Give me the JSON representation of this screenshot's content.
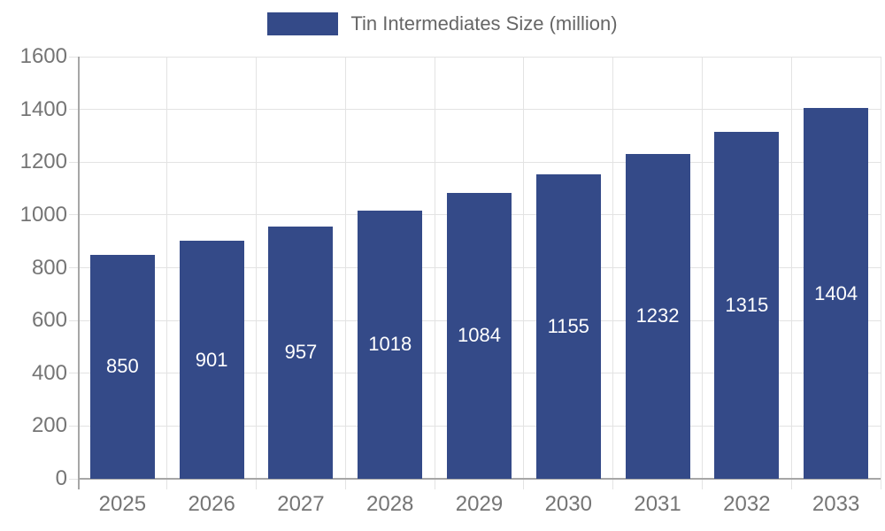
{
  "chart_data": {
    "type": "bar",
    "title": "",
    "legend": "Tin Intermediates Size (million)",
    "categories": [
      "2025",
      "2026",
      "2027",
      "2028",
      "2029",
      "2030",
      "2031",
      "2032",
      "2033"
    ],
    "values": [
      850,
      901,
      957,
      1018,
      1084,
      1155,
      1232,
      1315,
      1404
    ],
    "xlabel": "",
    "ylabel": "",
    "ylim": [
      0,
      1600
    ],
    "yticks": [
      0,
      200,
      400,
      600,
      800,
      1000,
      1200,
      1400,
      1600
    ],
    "grid": true,
    "legend_position": "top",
    "bar_labels_inside": true
  },
  "colors": {
    "bar": "#344a88",
    "grid": "#e3e3e3",
    "axis_line": "#a6a6a6",
    "tick_label": "#757575",
    "legend_text": "#666666",
    "value_label": "#ffffff",
    "background": "#ffffff"
  }
}
